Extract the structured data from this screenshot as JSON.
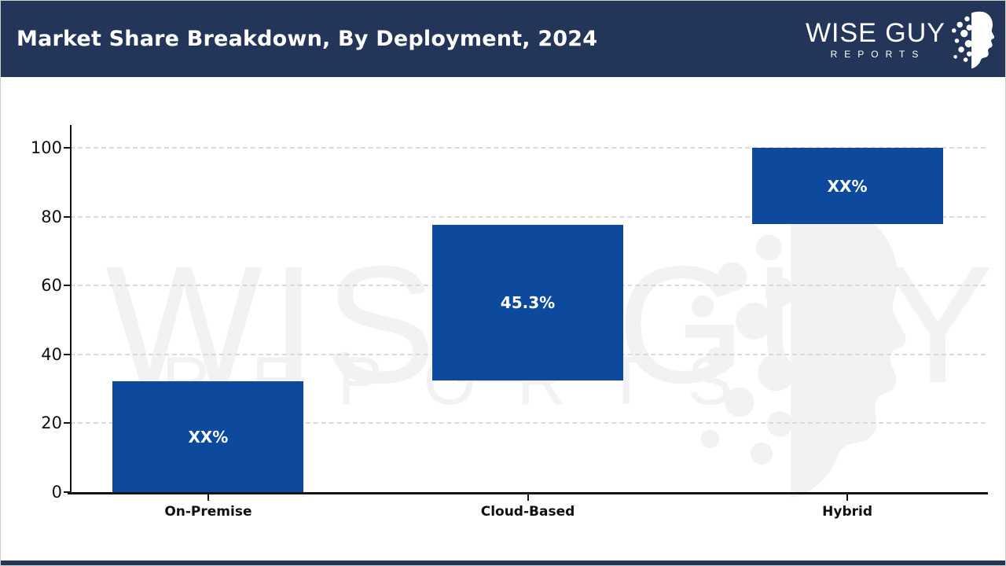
{
  "header": {
    "title": "Market Share Breakdown, By Deployment, 2024",
    "bg_color": "#233659",
    "logo": {
      "line1": "WISE GUY",
      "line2": "REPORTS"
    }
  },
  "watermark": {
    "line1": "WISE GUY",
    "line2": "REPORTS"
  },
  "chart_data": {
    "type": "bar",
    "subtype": "waterfall-segments",
    "title": "Market Share Breakdown, By Deployment, 2024",
    "categories": [
      "On-Premise",
      "Cloud-Based",
      "Hybrid"
    ],
    "segments": [
      {
        "category": "On-Premise",
        "start": 0,
        "end": 32.2,
        "label": "XX%"
      },
      {
        "category": "Cloud-Based",
        "start": 32.4,
        "end": 77.7,
        "label": "45.3%"
      },
      {
        "category": "Hybrid",
        "start": 77.9,
        "end": 100,
        "label": "XX%"
      }
    ],
    "bar_color": "#0d4a9e",
    "label_color": "#ffffff",
    "yticks": [
      0,
      20,
      40,
      60,
      80,
      100
    ],
    "ylim": [
      0,
      106.7
    ],
    "xlabel": "",
    "ylabel": "",
    "grid": "horizontal-dashed",
    "legend": "none"
  }
}
